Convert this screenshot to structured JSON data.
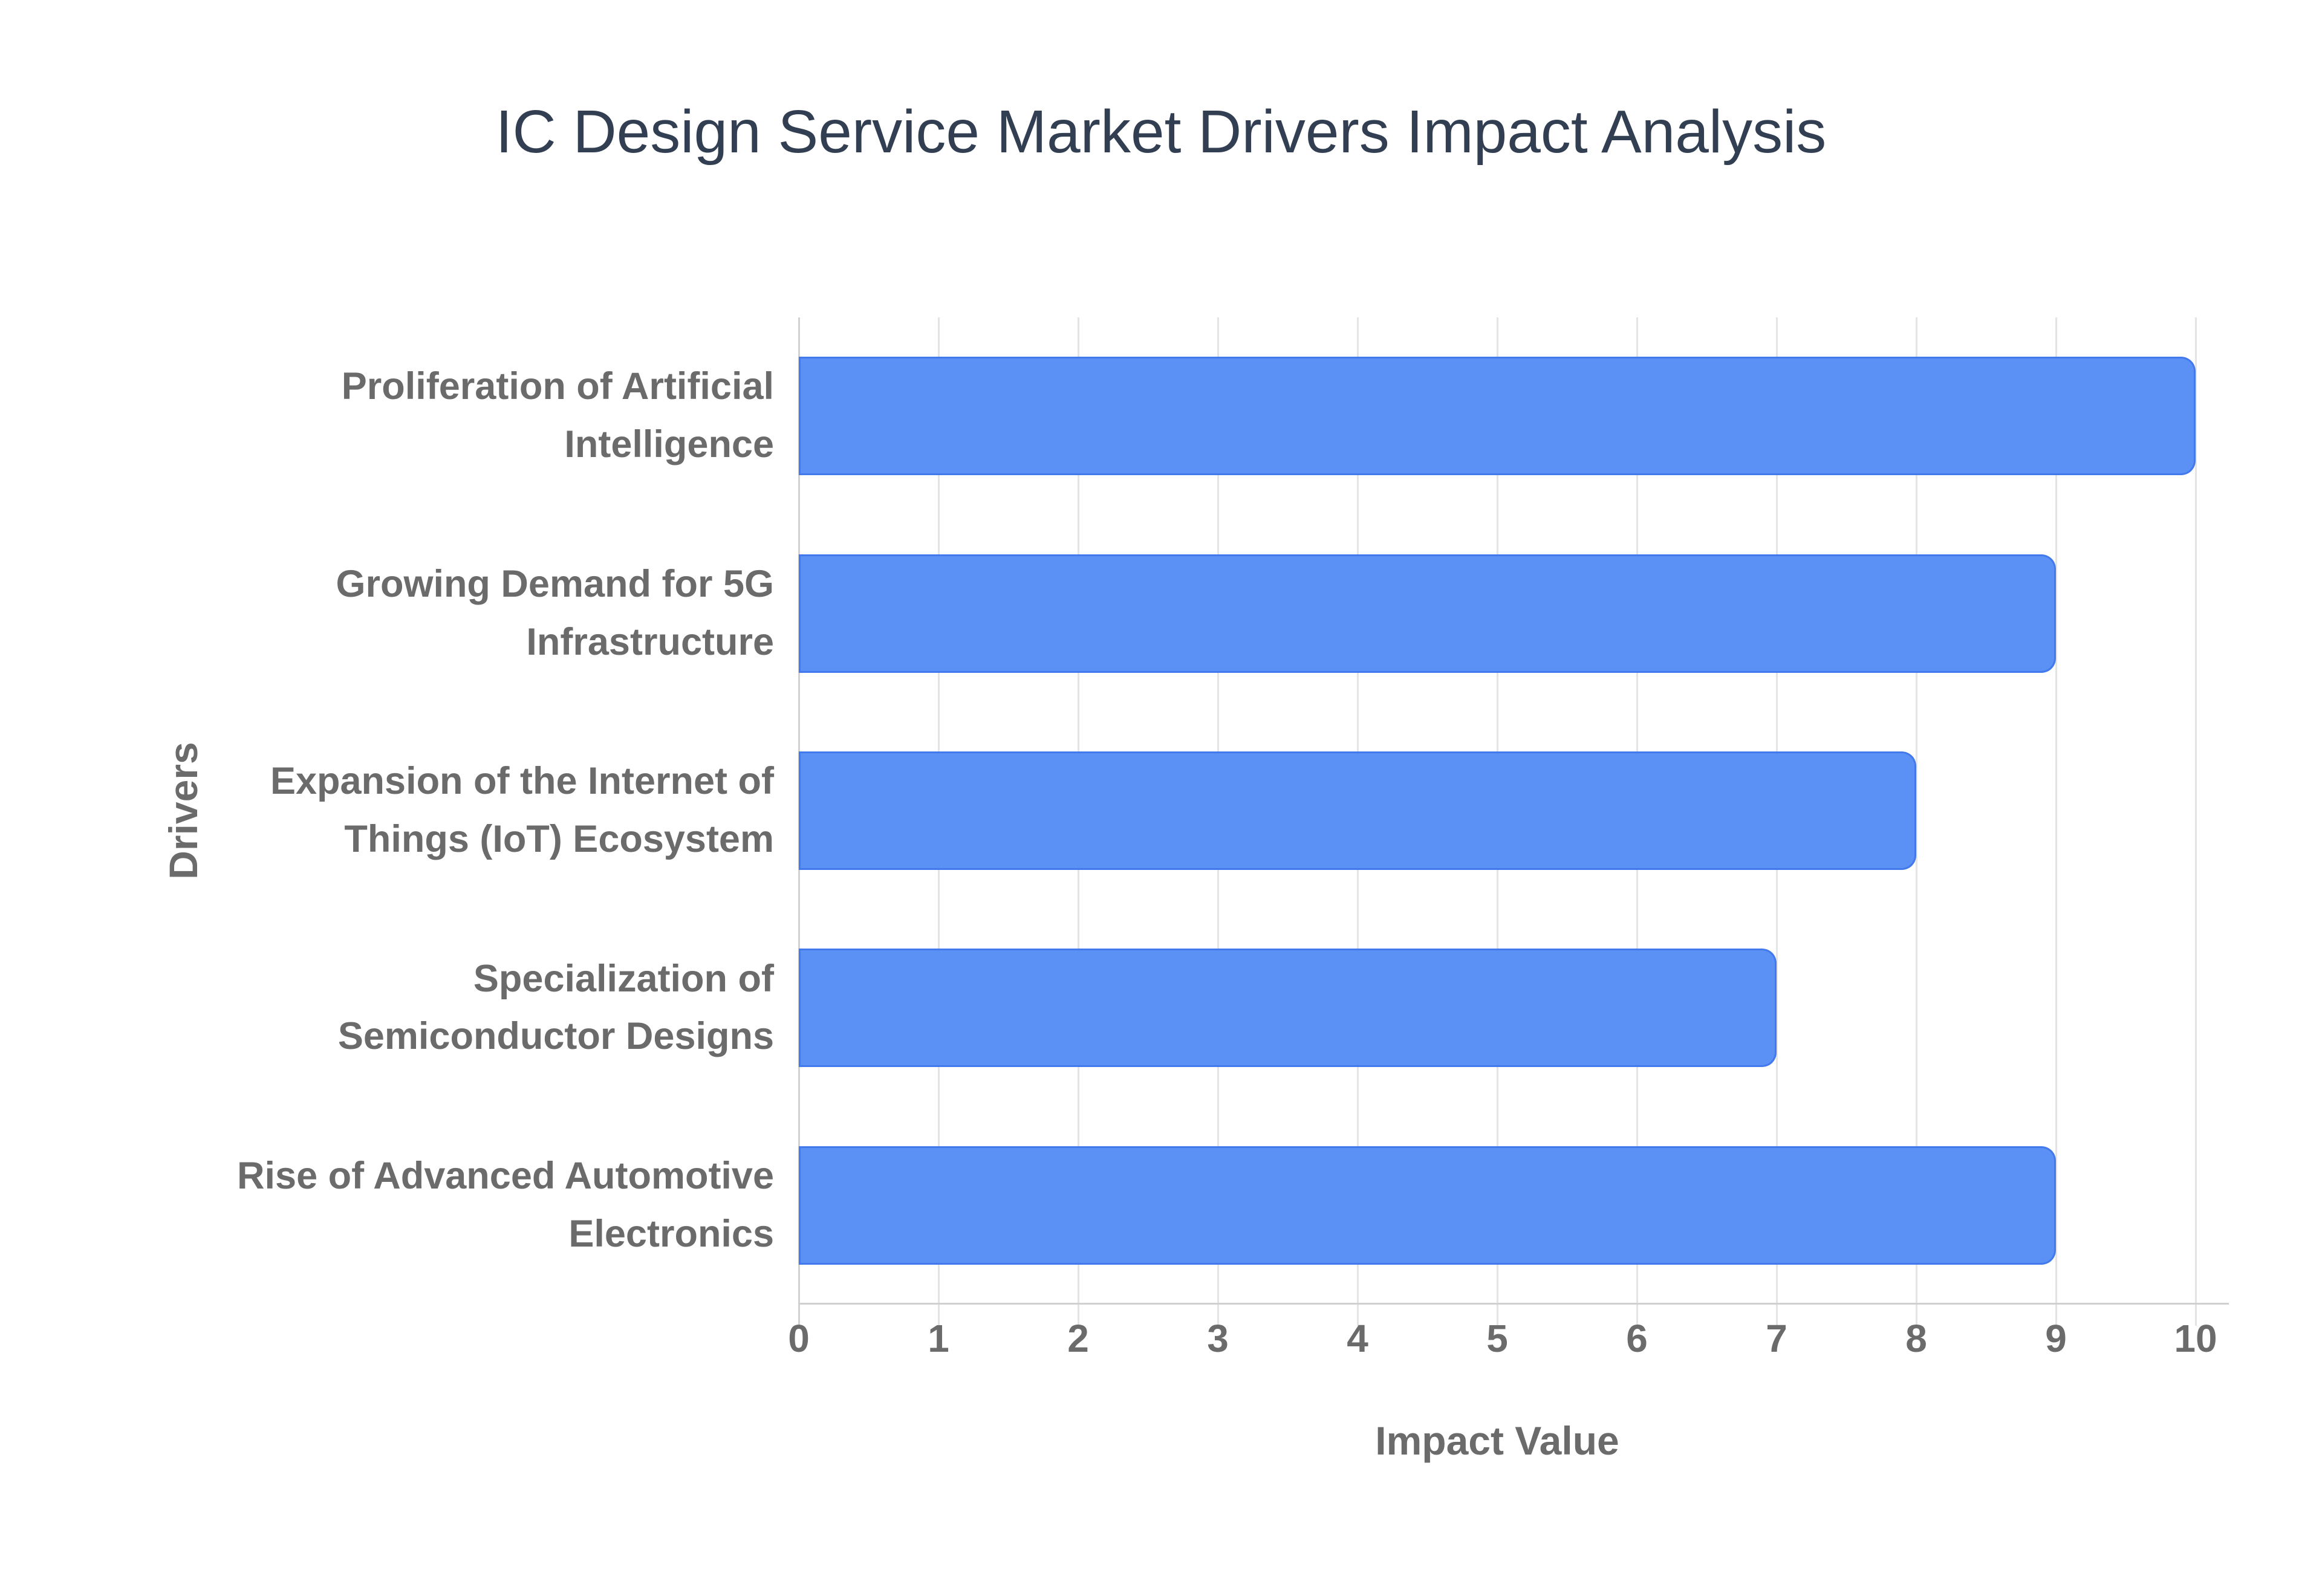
{
  "chart_data": {
    "type": "bar",
    "orientation": "horizontal",
    "title": "IC Design Service Market Drivers Impact Analysis",
    "categories": [
      "Proliferation of Artificial Intelligence",
      "Growing Demand for 5G Infrastructure",
      "Expansion of the Internet of Things (IoT) Ecosystem",
      "Specialization of Semiconductor Designs",
      "Rise of Advanced Automotive Electronics"
    ],
    "category_label_lines": [
      [
        "Proliferation of Artificial",
        "Intelligence"
      ],
      [
        "Growing Demand for 5G",
        "Infrastructure"
      ],
      [
        "Expansion of the Internet of",
        "Things (IoT) Ecosystem"
      ],
      [
        "Specialization of",
        "Semiconductor Designs"
      ],
      [
        "Rise of Advanced Automotive",
        "Electronics"
      ]
    ],
    "values": [
      10,
      9,
      8,
      7,
      9
    ],
    "xlabel": "Impact Value",
    "ylabel": "Drivers",
    "xlim": [
      0,
      10
    ],
    "xticks": [
      0,
      1,
      2,
      3,
      4,
      5,
      6,
      7,
      8,
      9,
      10
    ],
    "grid": "vertical-only",
    "legend": "none",
    "colors": {
      "bar_fill": "#5b91f5",
      "bar_border": "#3a72e8",
      "title_text": "#323f52",
      "axis_label_text": "#6b6b6b",
      "tick_text": "#6b6b6b",
      "gridline": "#e4e4e4",
      "axis_line": "#d0d0d0"
    }
  }
}
